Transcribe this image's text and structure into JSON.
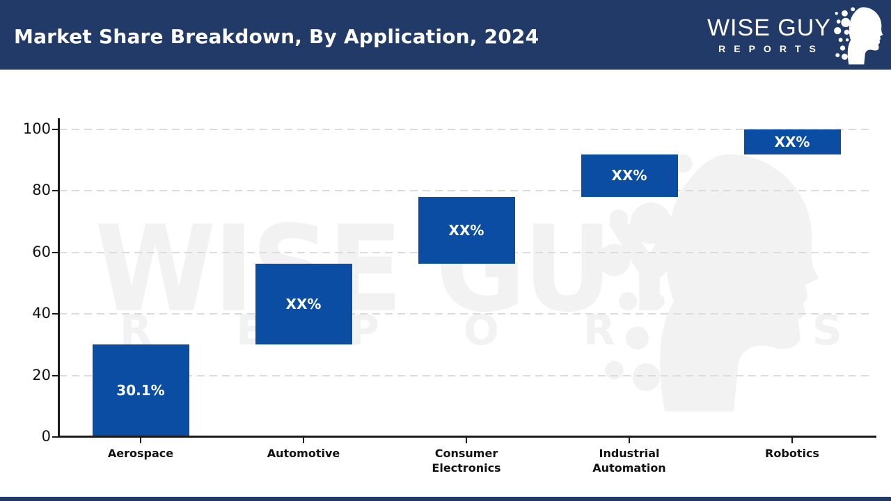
{
  "header": {
    "title": "Market Share Breakdown, By Application, 2024",
    "logo_line1": "WISE GUY",
    "logo_line2": "REPORTS"
  },
  "watermark": {
    "line1": "WISE GUY",
    "line2": "R E P O R T S"
  },
  "colors": {
    "header_bg": "#223A67",
    "bar": "#0B4DA2",
    "grid": "#DCDCDC",
    "axis": "#1A1A1A",
    "bar_label": "#FFFFFF"
  },
  "chart_data": {
    "type": "bar",
    "subtype": "waterfall",
    "title": "Market Share Breakdown, By Application, 2024",
    "categories": [
      "Aerospace",
      "Automotive",
      "Consumer\nElectronics",
      "Industrial\nAutomation",
      "Robotics"
    ],
    "segments": [
      {
        "category": "Aerospace",
        "label": "30.1%",
        "start": 0,
        "end": 30.1
      },
      {
        "category": "Automotive",
        "label": "XX%",
        "start": 30.1,
        "end": 56.3
      },
      {
        "category": "Consumer Electronics",
        "label": "XX%",
        "start": 56.3,
        "end": 78.1
      },
      {
        "category": "Industrial Automation",
        "label": "XX%",
        "start": 78.1,
        "end": 91.9
      },
      {
        "category": "Robotics",
        "label": "XX%",
        "start": 91.9,
        "end": 100
      }
    ],
    "xlabel": "",
    "ylabel": "",
    "ylim": [
      0,
      100
    ],
    "yticks": [
      0,
      20,
      40,
      60,
      80,
      100
    ],
    "grid": "horizontal-dashed",
    "legend": null
  }
}
